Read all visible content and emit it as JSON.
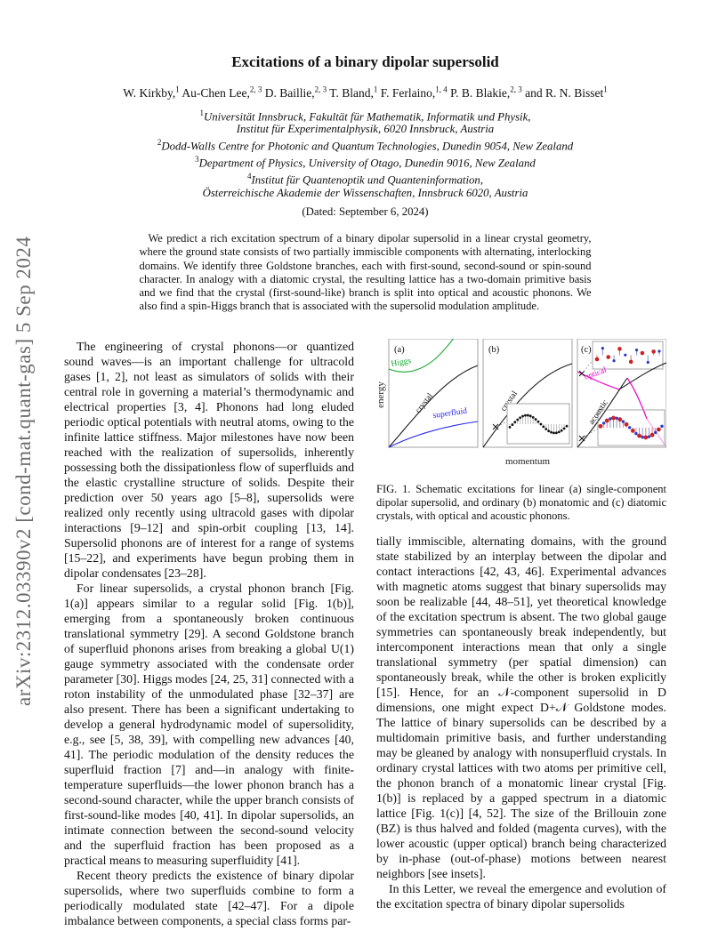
{
  "arxiv_stamp": "arXiv:2312.03390v2  [cond-mat.quant-gas]  5 Sep 2024",
  "header": {
    "title": "Excitations of a binary dipolar supersolid",
    "authors": [
      {
        "text": "W. Kirkby,",
        "sup": "1"
      },
      {
        "text": " Au-Chen Lee,",
        "sup": "2, 3"
      },
      {
        "text": " D. Baillie,",
        "sup": "2, 3"
      },
      {
        "text": " T. Bland,",
        "sup": "1"
      },
      {
        "text": " F. Ferlaino,",
        "sup": "1, 4"
      },
      {
        "text": " P. B. Blakie,",
        "sup": "2, 3"
      },
      {
        "text": " and R. N. Bisset",
        "sup": "1"
      }
    ],
    "affiliations": [
      {
        "sup": "1",
        "text": "Universität Innsbruck, Fakultät für Mathematik, Informatik und Physik,"
      },
      {
        "sup": "",
        "text": "Institut für Experimentalphysik, 6020 Innsbruck, Austria"
      },
      {
        "sup": "2",
        "text": "Dodd-Walls Centre for Photonic and Quantum Technologies, Dunedin 9054, New Zealand"
      },
      {
        "sup": "3",
        "text": "Department of Physics, University of Otago, Dunedin 9016, New Zealand"
      },
      {
        "sup": "4",
        "text": "Institut für Quantenoptik und Quanteninformation,"
      },
      {
        "sup": "",
        "text": "Österreichische Akademie der Wissenschaften, Innsbruck 6020, Austria"
      }
    ],
    "date": "(Dated: September 6, 2024)"
  },
  "abstract": "We predict a rich excitation spectrum of a binary dipolar supersolid in a linear crystal geometry, where the ground state consists of two partially immiscible components with alternating, interlocking domains. We identify three Goldstone branches, each with first-sound, second-sound or spin-sound character. In analogy with a diatomic crystal, the resulting lattice has a two-domain primitive basis and we find that the crystal (first-sound-like) branch is split into optical and acoustic phonons. We also find a spin-Higgs branch that is associated with the supersolid modulation amplitude.",
  "left_column": {
    "paragraphs": [
      "The engineering of crystal phonons—or quantized sound waves—is an important challenge for ultracold gases [1, 2], not least as simulators of solids with their central role in governing a material’s thermodynamic and electrical properties [3, 4]. Phonons had long eluded periodic optical potentials with neutral atoms, owing to the infinite lattice stiffness. Major milestones have now been reached with the realization of supersolids, inherently possessing both the dissipationless flow of superfluids and the elastic crystalline structure of solids. Despite their prediction over 50 years ago [5–8], supersolids were realized only recently using ultracold gases with dipolar interactions [9–12] and spin-orbit coupling [13, 14]. Supersolid phonons are of interest for a range of systems [15–22], and experiments have begun probing them in dipolar condensates [23–28].",
      "For linear supersolids, a crystal phonon branch [Fig. 1(a)] appears similar to a regular solid [Fig. 1(b)], emerging from a spontaneously broken continuous translational symmetry [29]. A second Goldstone branch of superfluid phonons arises from breaking a global U(1) gauge symmetry associated with the condensate order parameter [30]. Higgs modes [24, 25, 31] connected with a roton instability of the unmodulated phase [32–37] are also present. There has been a significant undertaking to develop a general hydrodynamic model of supersolidity, e.g., see [5, 38, 39], with compelling new advances [40, 41]. The periodic modulation of the density reduces the superfluid fraction [7] and—in analogy with finite-temperature superfluids—the lower phonon branch has a second-sound character, while the upper branch consists of first-sound-like modes [40, 41]. In dipolar supersolids, an intimate connection between the second-sound velocity and the superfluid fraction has been proposed as a practical means to measuring superfluidity [41].",
      "Recent theory predicts the existence of binary dipolar supersolids, where two superfluids combine to form a periodically modulated state [42–47]. For a dipole imbalance between components, a special class forms par-"
    ]
  },
  "figure": {
    "panel_a_label": "(a)",
    "panel_b_label": "(b)",
    "panel_c_label": "(c)",
    "ylabel": "energy",
    "xlabel": "momentum",
    "curve_labels": {
      "higgs": "Higgs",
      "crystal_a": "crystal",
      "superfluid": "superfluid",
      "crystal_b": "crystal",
      "optical": "optical",
      "acoustic": "acoustic"
    },
    "colors": {
      "higgs_green": "#16a832",
      "superfluid_blue": "#2525f0",
      "optical_magenta": "#ee00cc",
      "crystal_black": "#1a1a1a",
      "dot_red": "#cc2222",
      "dot_blue": "#2b3bc4"
    },
    "caption": "FIG. 1. Schematic excitations for linear (a) single-component dipolar supersolid, and ordinary (b) monatomic and (c) diatomic crystals, with optical and acoustic phonons."
  },
  "right_column": {
    "paragraphs": [
      "tially immiscible, alternating domains, with the ground state stabilized by an interplay between the dipolar and contact interactions [42, 43, 46]. Experimental advances with magnetic atoms suggest that binary supersolids may soon be realizable [44, 48–51], yet theoretical knowledge of the excitation spectrum is absent. The two global gauge symmetries can spontaneously break independently, but intercomponent interactions mean that only a single translational symmetry (per spatial dimension) can spontaneously break, while the other is broken explicitly [15]. Hence, for an 𝒩-component supersolid in D dimensions, one might expect D+𝒩 Goldstone modes. The lattice of binary supersolids can be described by a multidomain primitive basis, and further understanding may be gleaned by analogy with nonsuperfluid crystals. In ordinary crystal lattices with two atoms per primitive cell, the phonon branch of a monatomic linear crystal [Fig. 1(b)] is replaced by a gapped spectrum in a diatomic lattice [Fig. 1(c)] [4, 52]. The size of the Brillouin zone (BZ) is thus halved and folded (magenta curves), with the lower acoustic (upper optical) branch being characterized by in-phase (out-of-phase) motions between nearest neighbors [see insets].",
      "In this Letter, we reveal the emergence and evolution of the excitation spectra of binary dipolar supersolids"
    ]
  }
}
